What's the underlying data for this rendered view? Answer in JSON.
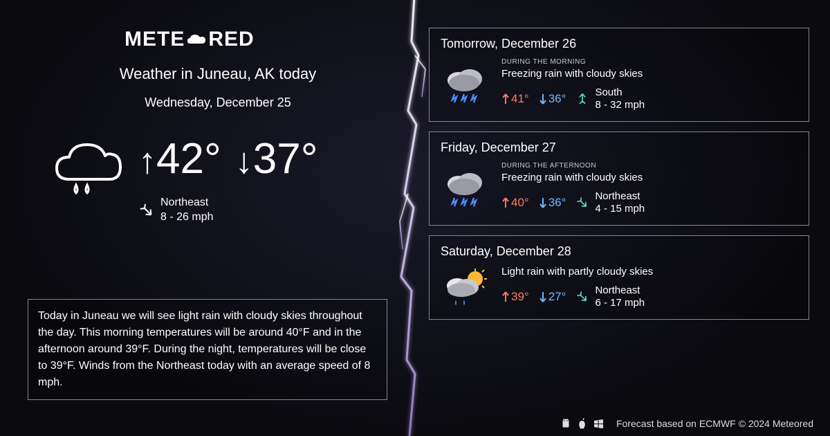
{
  "brand": "METEORED",
  "title": "Weather in Juneau, AK today",
  "today": {
    "date": "Wednesday, December 25",
    "high": "42°",
    "low": "37°",
    "wind_dir": "Northeast",
    "wind_speed": "8 - 26 mph",
    "wind_arrow_rotation": 135,
    "description": "Today in Juneau we will see light rain with cloudy skies throughout the day. This morning temperatures will be around 40°F and in the afternoon around 39°F. During the night, temperatures will be close to 39°F. Winds from the Northeast today with an average speed of 8 mph.",
    "icon": "rain-cloudy"
  },
  "forecast": [
    {
      "date": "Tomorrow, December 26",
      "period": "DURING THE MORNING",
      "condition": "Freezing rain with cloudy skies",
      "high": "41°",
      "low": "36°",
      "wind_dir": "South",
      "wind_speed": "8 - 32 mph",
      "wind_color": "#5fd8c8",
      "wind_arrow_rotation": 0,
      "icon": "freezing-rain"
    },
    {
      "date": "Friday, December 27",
      "period": "DURING THE AFTERNOON",
      "condition": "Freezing rain with cloudy skies",
      "high": "40°",
      "low": "36°",
      "wind_dir": "Northeast",
      "wind_speed": "4 - 15 mph",
      "wind_color": "#5fd8c8",
      "wind_arrow_rotation": 135,
      "icon": "freezing-rain"
    },
    {
      "date": "Saturday, December 28",
      "period": "",
      "condition": "Light rain with partly cloudy skies",
      "high": "39°",
      "low": "27°",
      "wind_dir": "Northeast",
      "wind_speed": "6 - 17 mph",
      "wind_color": "#5fd8c8",
      "wind_arrow_rotation": 135,
      "icon": "partly-rain"
    }
  ],
  "footer": {
    "text": "Forecast based on ECMWF © 2024 Meteored"
  },
  "colors": {
    "high": "#ff7a5c",
    "low": "#6fb8ff",
    "wind": "#5fd8c8",
    "border": "#888888",
    "bg": "#0a0a0f"
  }
}
